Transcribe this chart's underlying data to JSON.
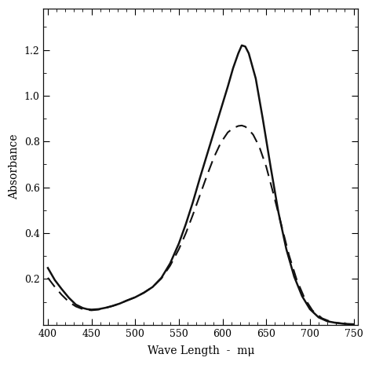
{
  "title": "",
  "xlabel": "Wave Length  -  mμ",
  "ylabel": "Absorbance",
  "xlim": [
    395,
    755
  ],
  "ylim": [
    0,
    1.38
  ],
  "xticks": [
    400,
    450,
    500,
    550,
    600,
    650,
    700,
    750
  ],
  "yticks": [
    0.2,
    0.4,
    0.6,
    0.8,
    1.0,
    1.2
  ],
  "background_color": "#ffffff",
  "plot_bg_color": "#ffffff",
  "solid_color": "#111111",
  "dashed_color": "#111111",
  "solid_x": [
    400,
    408,
    416,
    424,
    432,
    440,
    445,
    450,
    458,
    466,
    474,
    482,
    490,
    500,
    510,
    520,
    530,
    540,
    550,
    558,
    566,
    574,
    582,
    590,
    598,
    606,
    612,
    618,
    622,
    626,
    630,
    638,
    646,
    655,
    664,
    673,
    682,
    691,
    700,
    710,
    720,
    730,
    740,
    750
  ],
  "solid_y": [
    0.248,
    0.195,
    0.155,
    0.118,
    0.088,
    0.073,
    0.068,
    0.066,
    0.068,
    0.074,
    0.082,
    0.092,
    0.105,
    0.12,
    0.14,
    0.165,
    0.205,
    0.268,
    0.355,
    0.44,
    0.535,
    0.64,
    0.74,
    0.84,
    0.94,
    1.04,
    1.12,
    1.185,
    1.22,
    1.215,
    1.185,
    1.075,
    0.9,
    0.69,
    0.49,
    0.33,
    0.21,
    0.125,
    0.068,
    0.032,
    0.015,
    0.008,
    0.004,
    0.002
  ],
  "dashed_x": [
    400,
    408,
    416,
    424,
    432,
    440,
    445,
    450,
    458,
    466,
    474,
    482,
    490,
    500,
    510,
    520,
    530,
    540,
    550,
    558,
    566,
    574,
    582,
    590,
    598,
    606,
    612,
    618,
    622,
    626,
    630,
    635,
    642,
    650,
    658,
    667,
    676,
    685,
    694,
    703,
    714,
    724,
    735,
    745
  ],
  "dashed_y": [
    0.205,
    0.165,
    0.13,
    0.1,
    0.08,
    0.068,
    0.065,
    0.063,
    0.066,
    0.073,
    0.082,
    0.092,
    0.105,
    0.12,
    0.14,
    0.165,
    0.202,
    0.258,
    0.33,
    0.4,
    0.48,
    0.565,
    0.65,
    0.73,
    0.795,
    0.84,
    0.858,
    0.868,
    0.87,
    0.865,
    0.852,
    0.83,
    0.778,
    0.69,
    0.575,
    0.44,
    0.305,
    0.195,
    0.115,
    0.062,
    0.028,
    0.013,
    0.006,
    0.003
  ],
  "linewidth_solid": 1.8,
  "linewidth_dashed": 1.5,
  "dash_pattern": [
    7,
    4
  ]
}
